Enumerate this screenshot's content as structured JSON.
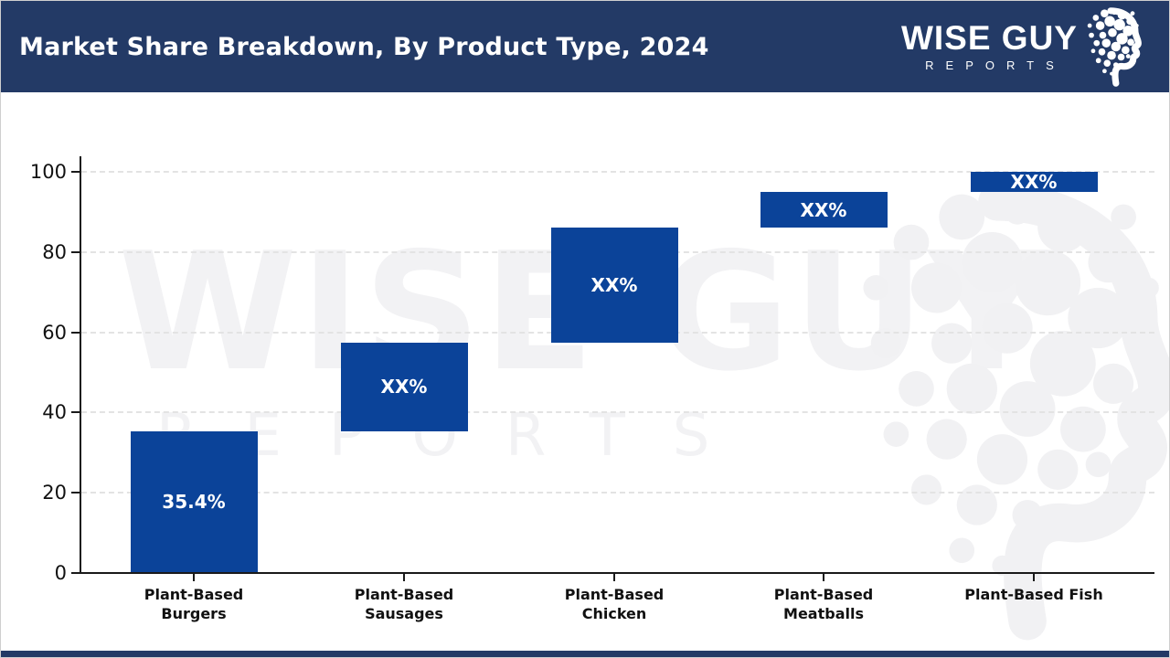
{
  "header": {
    "title": "Market Share Breakdown, By Product Type, 2024",
    "bg_color": "#233a66",
    "logo": {
      "line1": "WISE GUY",
      "line2": "REPORTS"
    }
  },
  "watermark": {
    "line1": "WISE GUY",
    "line2": "REPORTS"
  },
  "footer": {
    "bg_color": "#233a66"
  },
  "chart_data": {
    "type": "bar",
    "subtype": "waterfall-cumulative-percentage",
    "title": "Market Share Breakdown, By Product Type, 2024",
    "xlabel": "",
    "ylabel": "",
    "ylim": [
      0,
      104
    ],
    "yticks": [
      0,
      20,
      40,
      60,
      80,
      100
    ],
    "grid": "horizontal-dashed",
    "legend": "none",
    "bar_color": "#0b4399",
    "bar_label_color": "#ffffff",
    "grid_color": "#e3e3e3",
    "axis_color": "#1a1a1a",
    "text_color": "#111111",
    "categories": [
      "Plant-Based Burgers",
      "Plant-Based Sausages",
      "Plant-Based Chicken",
      "Plant-Based Meatballs",
      "Plant-Based Fish"
    ],
    "category_lines": [
      [
        "Plant-Based",
        "Burgers"
      ],
      [
        "Plant-Based",
        "Sausages"
      ],
      [
        "Plant-Based",
        "Chicken"
      ],
      [
        "Plant-Based",
        "Meatballs"
      ],
      [
        "Plant-Based Fish"
      ]
    ],
    "segments": [
      {
        "category": "Plant-Based Burgers",
        "label": "35.4%",
        "start": 0,
        "end": 35.4
      },
      {
        "category": "Plant-Based Sausages",
        "label": "XX%",
        "start": 35.4,
        "end": 57.5
      },
      {
        "category": "Plant-Based Chicken",
        "label": "XX%",
        "start": 57.5,
        "end": 86
      },
      {
        "category": "Plant-Based Meatballs",
        "label": "XX%",
        "start": 86,
        "end": 95
      },
      {
        "category": "Plant-Based Fish",
        "label": "XX%",
        "start": 95,
        "end": 100
      }
    ]
  }
}
